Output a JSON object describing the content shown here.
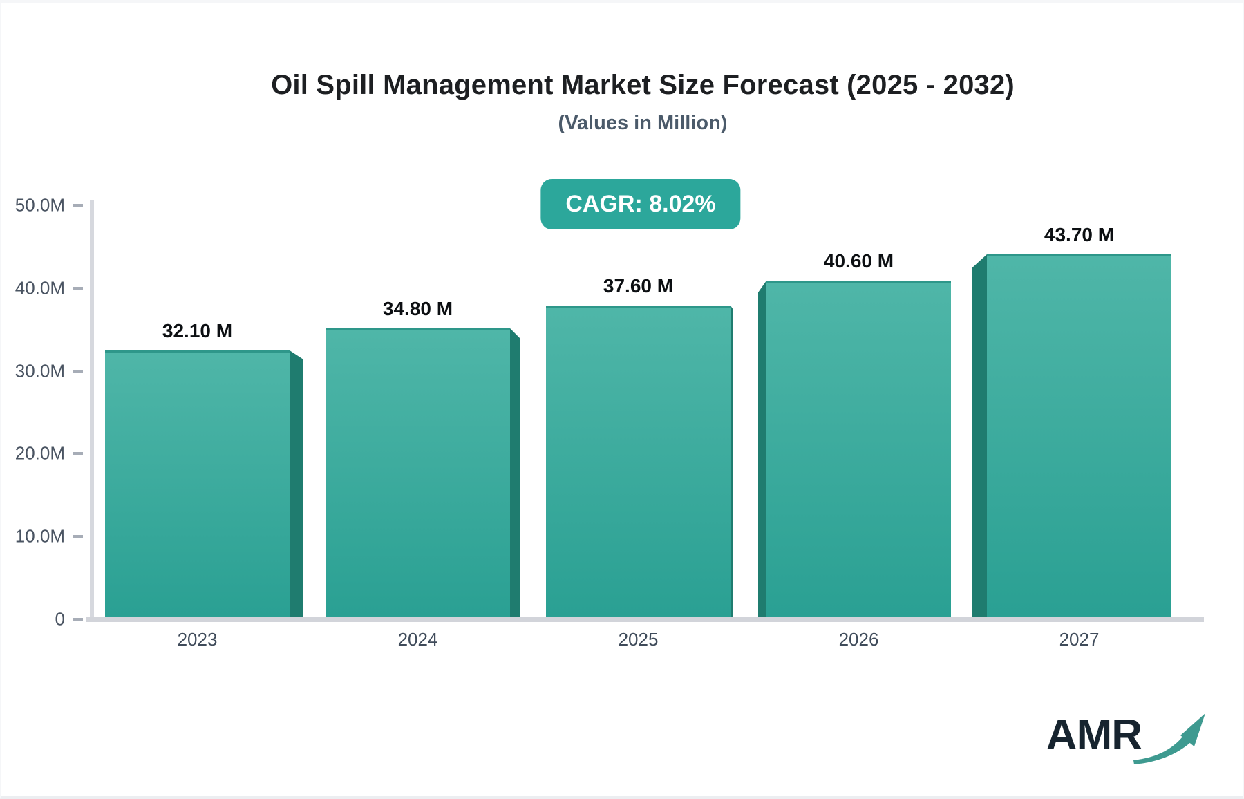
{
  "title": "Oil Spill Management Market Size Forecast (2025 - 2032)",
  "subtitle": "(Values in Million)",
  "badge": {
    "label": "CAGR: 8.02%",
    "bg_color": "#2ca79b",
    "text_color": "#ffffff"
  },
  "chart_data": {
    "type": "bar",
    "title": "Oil Spill Management Market Size Forecast (2025 - 2032)",
    "subtitle": "(Values in Million)",
    "categories": [
      "2023",
      "2024",
      "2025",
      "2026",
      "2027"
    ],
    "values": [
      32.1,
      34.8,
      37.6,
      40.6,
      43.7
    ],
    "value_labels": [
      "32.10 M",
      "34.80 M",
      "37.60 M",
      "40.60 M",
      "43.70 M"
    ],
    "y_ticks": [
      {
        "value": 0,
        "label": "0"
      },
      {
        "value": 10,
        "label": "10.0M"
      },
      {
        "value": 20,
        "label": "20.0M"
      },
      {
        "value": 30,
        "label": "30.0M"
      },
      {
        "value": 40,
        "label": "40.0M"
      },
      {
        "value": 50,
        "label": "50.0M"
      }
    ],
    "ylim": [
      0,
      50
    ],
    "xlabel": "",
    "ylabel": "",
    "grid": false,
    "legend": false,
    "colors": {
      "bar_face_top": "#4fb6a8",
      "bar_face_bottom": "#2aa093",
      "bar_side": "#1f7c6f",
      "bar_top_border": "#2e978a",
      "axis": "#d4d6dc",
      "tick_label": "#4a5462",
      "category_label": "#3f4b5a",
      "value_label": "#0c0f12"
    }
  },
  "logo": {
    "text": "AMR",
    "text_color": "#17242f",
    "arrow_color": "#3e9a90"
  }
}
